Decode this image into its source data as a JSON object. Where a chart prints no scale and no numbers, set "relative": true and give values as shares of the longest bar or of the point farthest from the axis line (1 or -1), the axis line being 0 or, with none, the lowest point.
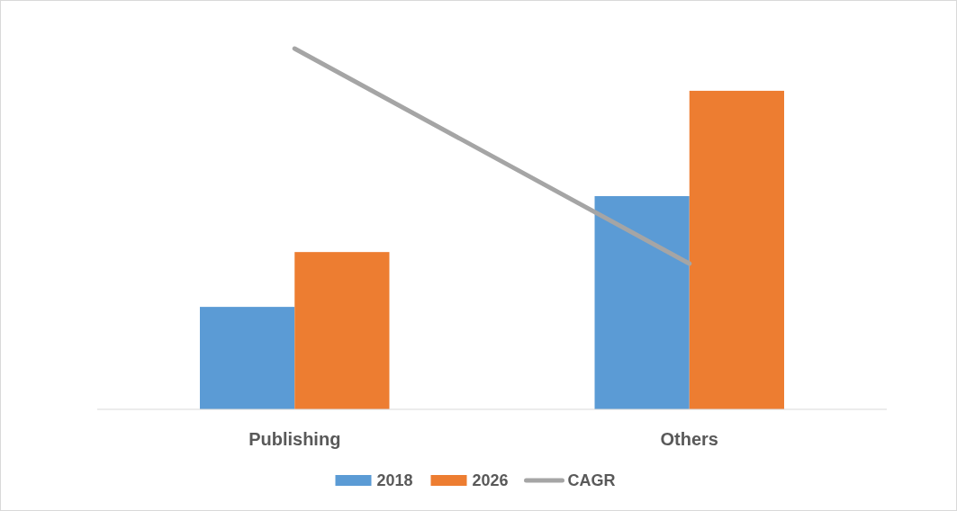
{
  "chart_data": {
    "type": "bar",
    "relative": true,
    "categories": [
      "Publishing",
      "Others"
    ],
    "series": [
      {
        "name": "2018",
        "color": "#5b9bd5",
        "values": [
          0.284,
          0.591
        ]
      },
      {
        "name": "2026",
        "color": "#ed7d31",
        "values": [
          0.436,
          0.883
        ]
      },
      {
        "name": "CAGR",
        "type": "line",
        "color": "#a5a5a5",
        "values": [
          1,
          0.404
        ]
      }
    ],
    "legend": "bottom"
  }
}
